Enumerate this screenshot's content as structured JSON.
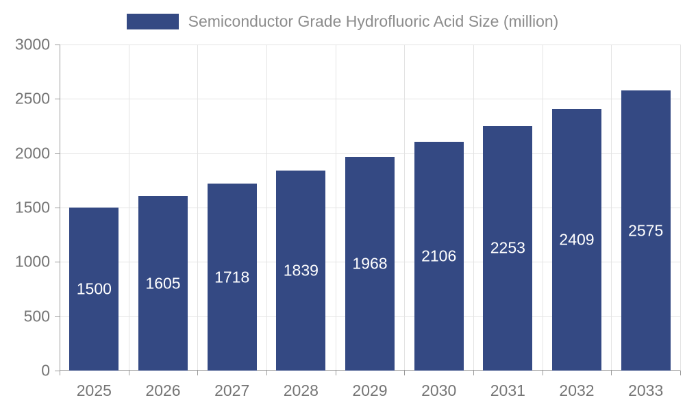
{
  "chart_data": {
    "type": "bar",
    "title": "Semiconductor Grade Hydrofluoric Acid Size (million)",
    "categories": [
      "2025",
      "2026",
      "2027",
      "2028",
      "2029",
      "2030",
      "2031",
      "2032",
      "2033"
    ],
    "values": [
      1500,
      1605,
      1718,
      1839,
      1968,
      2106,
      2253,
      2409,
      2575
    ],
    "series_name": "Semiconductor Grade Hydrofluoric Acid Size (million)",
    "xlabel": "",
    "ylabel": "",
    "ylim": [
      0,
      3000
    ],
    "ytick_step": 500,
    "yticks": [
      0,
      500,
      1000,
      1500,
      2000,
      2500,
      3000
    ],
    "grid": "on",
    "legend_position": "top-center",
    "value_labels": "inside-center",
    "colors": {
      "bar": "#344983",
      "grid_line": "#e3e3e3",
      "axis_line": "#999999",
      "axis_label": "#757575",
      "legend_text": "#8c8c8c",
      "bar_label": "#ffffff",
      "background": "#ffffff"
    }
  }
}
